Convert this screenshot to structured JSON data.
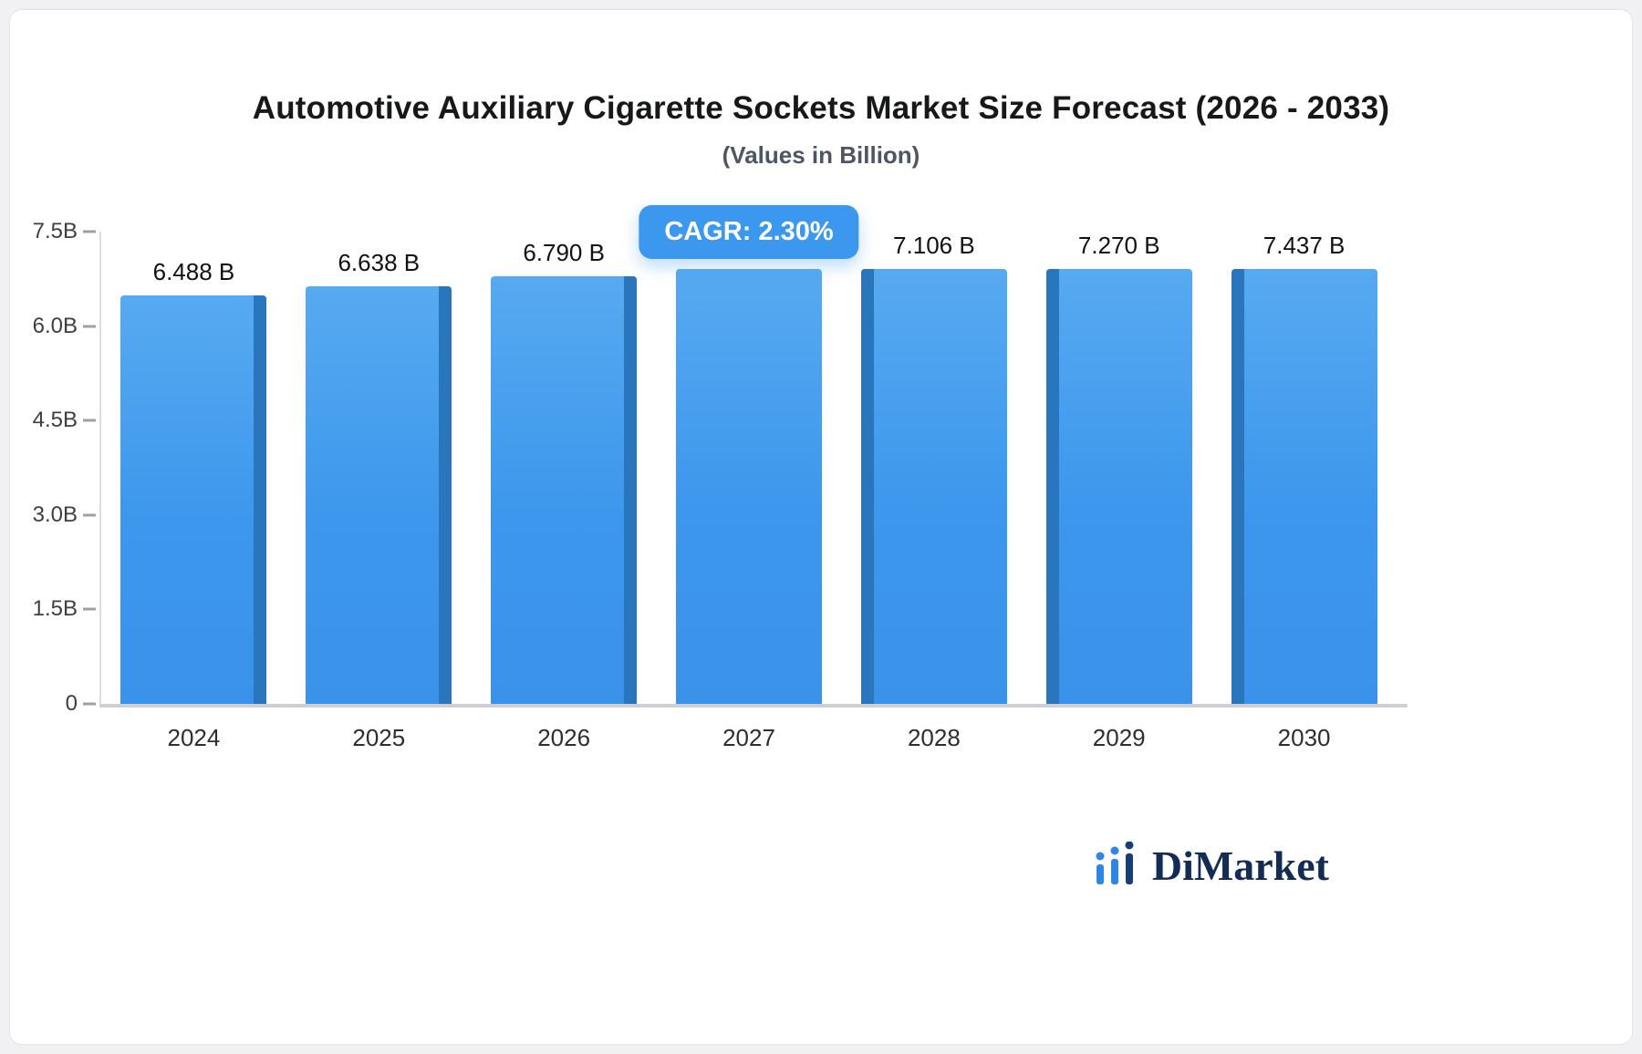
{
  "header": {
    "title": "Automotive Auxiliary Cigarette Sockets Market Size Forecast (2026 - 2033)",
    "subtitle": "(Values in Billion)"
  },
  "badge": {
    "label": "CAGR: 2.30%",
    "color": "#3b98ee"
  },
  "chart_data": {
    "type": "bar",
    "title": "Automotive Auxiliary Cigarette Sockets Market Size Forecast (2026 - 2033)",
    "subtitle": "(Values in Billion)",
    "categories": [
      "2024",
      "2025",
      "2026",
      "2027",
      "2028",
      "2029",
      "2030"
    ],
    "values": [
      6.488,
      6.638,
      6.79,
      6.946,
      7.106,
      7.27,
      7.437
    ],
    "bar_labels": [
      "6.488 B",
      "6.638 B",
      "6.790 B",
      "",
      "7.106 B",
      "7.270 B",
      "7.437 B"
    ],
    "xlabel": "",
    "ylabel": "",
    "ylim": [
      0,
      7.5
    ],
    "yticks": [
      {
        "value": 0,
        "label": "0"
      },
      {
        "value": 1.5,
        "label": "1.5B"
      },
      {
        "value": 3.0,
        "label": "3.0B"
      },
      {
        "value": 4.5,
        "label": "4.5B"
      },
      {
        "value": 6.0,
        "label": "6.0B"
      },
      {
        "value": 7.5,
        "label": "7.5B"
      }
    ],
    "grid": false,
    "legend_position": "none",
    "bar_color": "#3d97ec",
    "bar_edge_color": "#2a76bd",
    "annotation": "CAGR: 2.30%"
  },
  "logo": {
    "text": "DiMarket",
    "color": "#132c54",
    "icon": "bar-chart-icon",
    "icon_color": "#2f86e2"
  }
}
